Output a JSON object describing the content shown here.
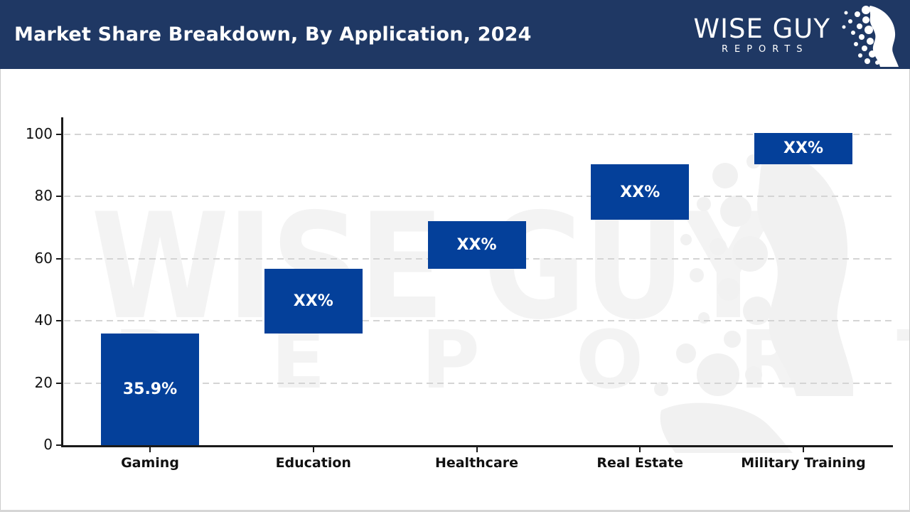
{
  "header": {
    "title": "Market Share Breakdown, By Application, 2024",
    "bg_color": "#1f3864",
    "logo": {
      "line1": "WISE GUY",
      "line2": "REPORTS"
    }
  },
  "watermark": {
    "line1": "WISE GUY",
    "line2": "REPORTS"
  },
  "chart_data": {
    "type": "bar",
    "subtype": "waterfall",
    "title": "Market Share Breakdown, By Application, 2024",
    "xlabel": "",
    "ylabel": "",
    "categories": [
      "Gaming",
      "Education",
      "Healthcare",
      "Real Estate",
      "Military Training"
    ],
    "segments": [
      {
        "category": "Gaming",
        "start": 0,
        "end": 35.9,
        "value": 35.9,
        "label": "35.9%"
      },
      {
        "category": "Education",
        "start": 35.9,
        "end": 56.6,
        "value": 20.7,
        "label": "XX%"
      },
      {
        "category": "Healthcare",
        "start": 56.7,
        "end": 72.1,
        "value": 15.4,
        "label": "XX%"
      },
      {
        "category": "Real Estate",
        "start": 72.4,
        "end": 90.2,
        "value": 17.8,
        "label": "XX%"
      },
      {
        "category": "Military Training",
        "start": 90.3,
        "end": 100.4,
        "value": 10.1,
        "label": "XX%"
      }
    ],
    "y_ticks": [
      0,
      20,
      40,
      60,
      80,
      100
    ],
    "ylim": [
      0,
      105
    ],
    "grid": "horizontal dashed",
    "legend": "none",
    "bar_color": "#04409a",
    "bar_label_color": "#ffffff",
    "axis_color": "#1a1a1a",
    "grid_color": "#d4d4d4",
    "header_color": "#1f3864",
    "watermark_color": "#f3f3f3"
  }
}
